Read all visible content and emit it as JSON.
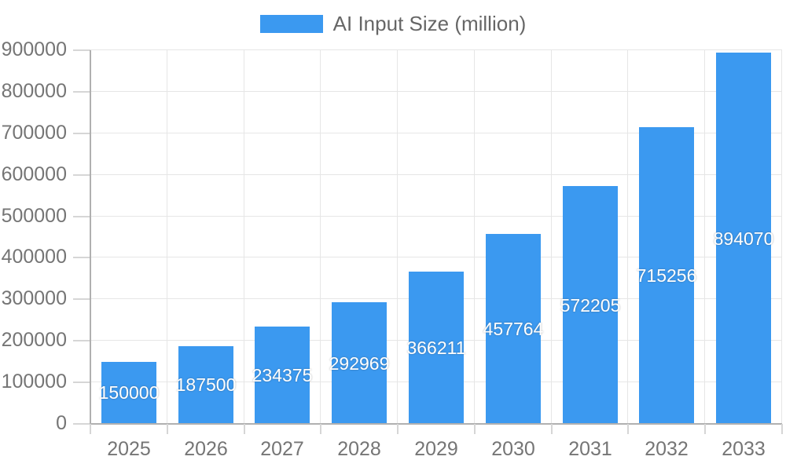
{
  "legend": {
    "label": "AI Input Size (million)",
    "swatch_color": "#3B99F0"
  },
  "chart_data": {
    "type": "bar",
    "title": "",
    "series_name": "AI Input Size (million)",
    "categories": [
      "2025",
      "2026",
      "2027",
      "2028",
      "2029",
      "2030",
      "2031",
      "2032",
      "2033"
    ],
    "values": [
      150000,
      187500,
      234375,
      292969,
      366211,
      457764,
      572205,
      715256,
      894070
    ],
    "value_labels": [
      "150000",
      "187500",
      "234375",
      "292969",
      "366211",
      "457764",
      "572205",
      "715256",
      "894070"
    ],
    "xlabel": "",
    "ylabel": "",
    "ylim": [
      0,
      900000
    ],
    "yticks": [
      0,
      100000,
      200000,
      300000,
      400000,
      500000,
      600000,
      700000,
      800000,
      900000
    ],
    "grid": true,
    "legend_position": "top",
    "bar_color": "#3B99F0",
    "colors": {
      "grid_line": "#E6E6E6",
      "axis_line": "#B0B0B0",
      "tick_mark": "#D6D6D6",
      "tick_label": "#757575",
      "legend_text": "#666666",
      "value_label": "#FFFFFF",
      "background": "#FFFFFF"
    }
  }
}
